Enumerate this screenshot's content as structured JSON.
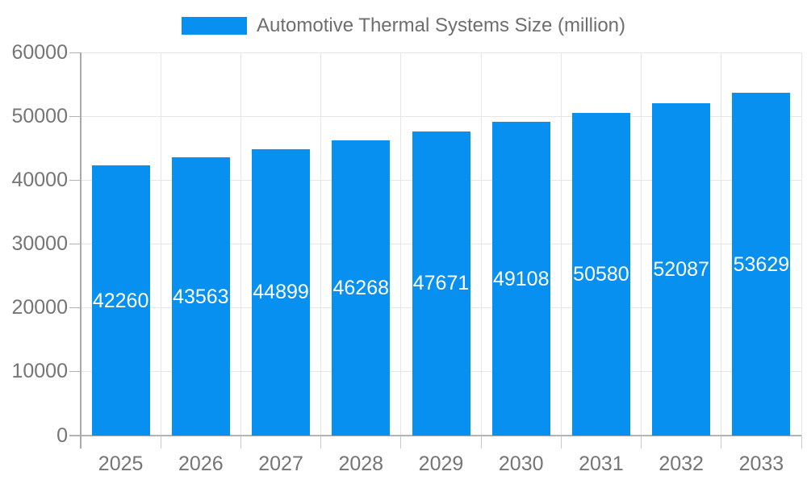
{
  "chart_data": {
    "type": "bar",
    "title": "",
    "categories": [
      "2025",
      "2026",
      "2027",
      "2028",
      "2029",
      "2030",
      "2031",
      "2032",
      "2033"
    ],
    "series": [
      {
        "name": "Automotive Thermal Systems Size (million)",
        "values": [
          42260,
          43563,
          44899,
          46268,
          47671,
          49108,
          50580,
          52087,
          53629
        ]
      }
    ],
    "value_labels_shown": true,
    "xlabel": "",
    "ylabel": "",
    "ylim": [
      0,
      60000
    ],
    "y_ticks": [
      0,
      10000,
      20000,
      30000,
      40000,
      50000,
      60000
    ],
    "grid": true,
    "legend_position": "top",
    "colors": {
      "bar": "#0890f0",
      "value_label": "#ffffff",
      "axis_text": "#757575",
      "legend_text": "#6e6e6e",
      "gridline": "#e6e6e6",
      "axis_line": "#b3b3b3",
      "background": "#ffffff"
    }
  }
}
